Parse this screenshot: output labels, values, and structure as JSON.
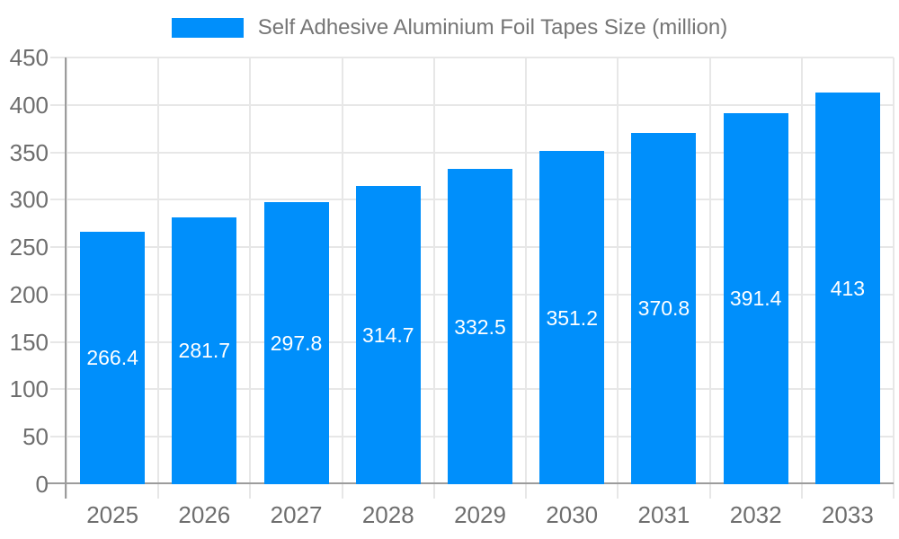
{
  "chart_data": {
    "type": "bar",
    "title": "Self Adhesive Aluminium Foil Tapes Size (million)",
    "categories": [
      "2025",
      "2026",
      "2027",
      "2028",
      "2029",
      "2030",
      "2031",
      "2032",
      "2033"
    ],
    "values": [
      266.4,
      281.7,
      297.8,
      314.7,
      332.5,
      351.2,
      370.8,
      391.4,
      413
    ],
    "value_labels": [
      "266.4",
      "281.7",
      "297.8",
      "314.7",
      "332.5",
      "351.2",
      "370.8",
      "391.4",
      "413"
    ],
    "xlabel": "",
    "ylabel": "",
    "ylim": [
      0,
      450
    ],
    "ytick_step": 50,
    "ytick_labels": [
      "0",
      "50",
      "100",
      "150",
      "200",
      "250",
      "300",
      "350",
      "400",
      "450"
    ],
    "grid": "both",
    "legend_position": "top",
    "colors": {
      "bar": "#008FFB",
      "bar_value_label": "#ffffff",
      "axis_text": "#6e6e6e",
      "legend_text": "#757575",
      "grid_line": "#e7e7e7",
      "axis_line": "#9c9c9c",
      "background": "#ffffff"
    }
  }
}
